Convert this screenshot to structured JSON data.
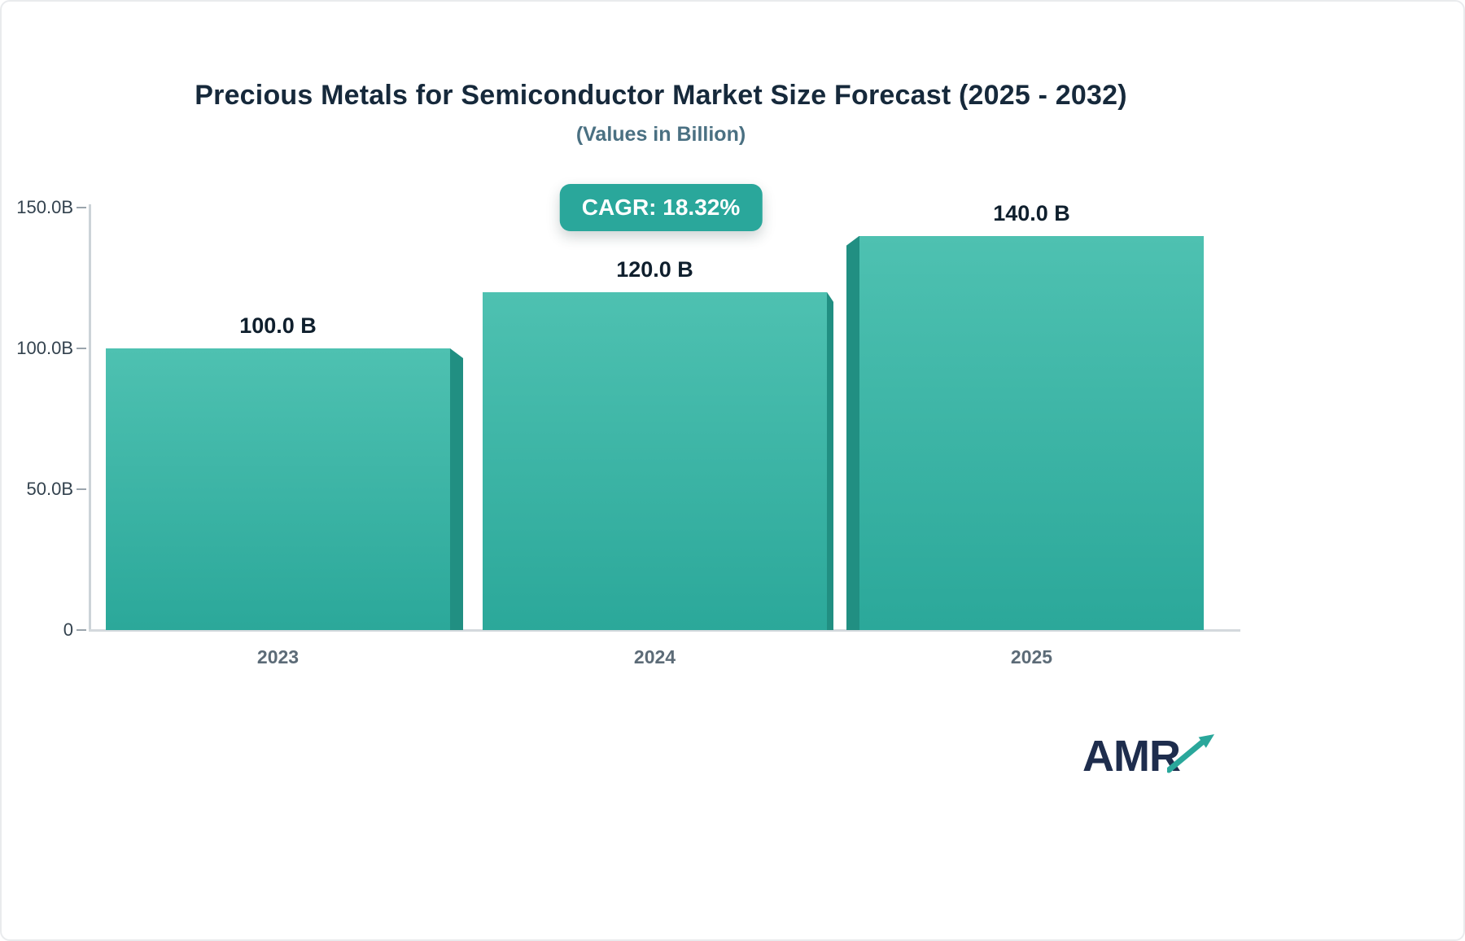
{
  "chart_data": {
    "type": "bar",
    "title": "Precious Metals for Semiconductor Market Size Forecast (2025 - 2032)",
    "subtitle": "(Values in Billion)",
    "categories": [
      "2023",
      "2024",
      "2025"
    ],
    "values": [
      100,
      120,
      140
    ],
    "value_labels": [
      "100.0 B",
      "120.0 B",
      "140.0 B"
    ],
    "xlabel": "",
    "ylabel": "",
    "ylim": [
      0,
      150
    ],
    "yticks": [
      {
        "value": 0,
        "label": "0"
      },
      {
        "value": 50,
        "label": "50.0B"
      },
      {
        "value": 100,
        "label": "100.0B"
      },
      {
        "value": 150,
        "label": "150.0B"
      }
    ],
    "grid": false,
    "legend": "none",
    "bar_color_top": "#4ec1b1",
    "bar_color_bottom": "#2ba89a",
    "bar_side_color": "#218f82"
  },
  "badge": {
    "text": "CAGR: 18.32%",
    "color": "#2aa79b"
  },
  "logo": {
    "text": "AMR",
    "arrow_color": "#2aa79b"
  }
}
